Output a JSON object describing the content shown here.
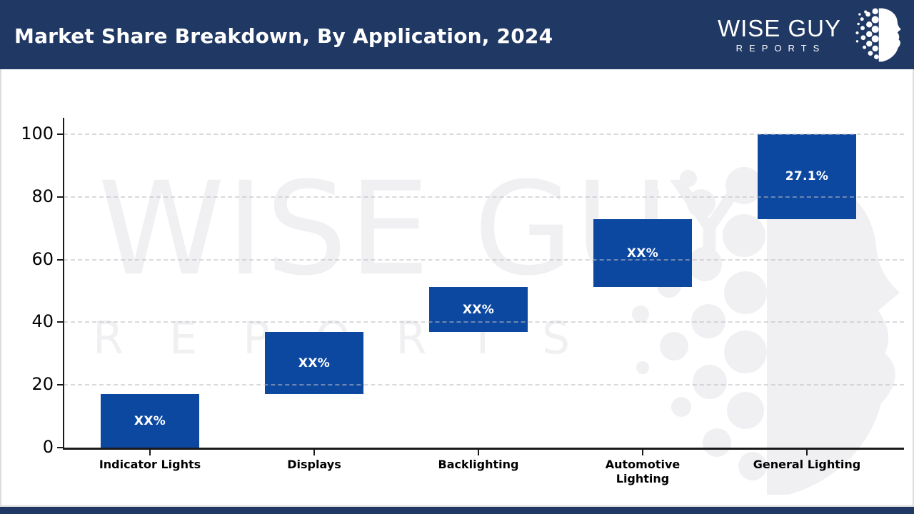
{
  "header": {
    "title": "Market Share Breakdown, By Application, 2024",
    "logo": {
      "line1": "WISE GUY",
      "line2": "REPORTS"
    }
  },
  "watermark": {
    "line1": "WISE GUY",
    "line2": "REPORTS"
  },
  "colors": {
    "header_bg": "#203864",
    "footer_bg": "#203864",
    "bar": "#0d48a0",
    "axis": "#1a1a1a",
    "grid": "#bbbbc1",
    "watermark": "#f0f0f3",
    "card_border": "#dcdcdc",
    "title_text": "#ffffff",
    "bar_label_text": "#ffffff"
  },
  "chart_data": {
    "type": "bar",
    "subtype": "waterfall",
    "title": "Market Share Breakdown, By Application, 2024",
    "categories": [
      "Indicator Lights",
      "Displays",
      "Backlighting",
      "Automotive Lighting",
      "General Lighting"
    ],
    "tick_labels": [
      "Indicator Lights",
      "Displays",
      "Backlighting",
      "Automotive\nLighting",
      "General Lighting"
    ],
    "bars": [
      {
        "category": "Indicator Lights",
        "start": 0,
        "end": 17,
        "label": "XX%"
      },
      {
        "category": "Displays",
        "start": 17,
        "end": 36.8,
        "label": "XX%"
      },
      {
        "category": "Backlighting",
        "start": 36.8,
        "end": 51.2,
        "label": "XX%"
      },
      {
        "category": "Automotive Lighting",
        "start": 51.2,
        "end": 72.9,
        "label": "XX%"
      },
      {
        "category": "General Lighting",
        "start": 72.9,
        "end": 100,
        "label": "27.1%"
      }
    ],
    "xlabel": "",
    "ylabel": "",
    "ylim": [
      0,
      100
    ],
    "yticks": [
      0,
      20,
      40,
      60,
      80,
      100
    ],
    "grid": "horizontal-dashed",
    "legend": "none"
  }
}
